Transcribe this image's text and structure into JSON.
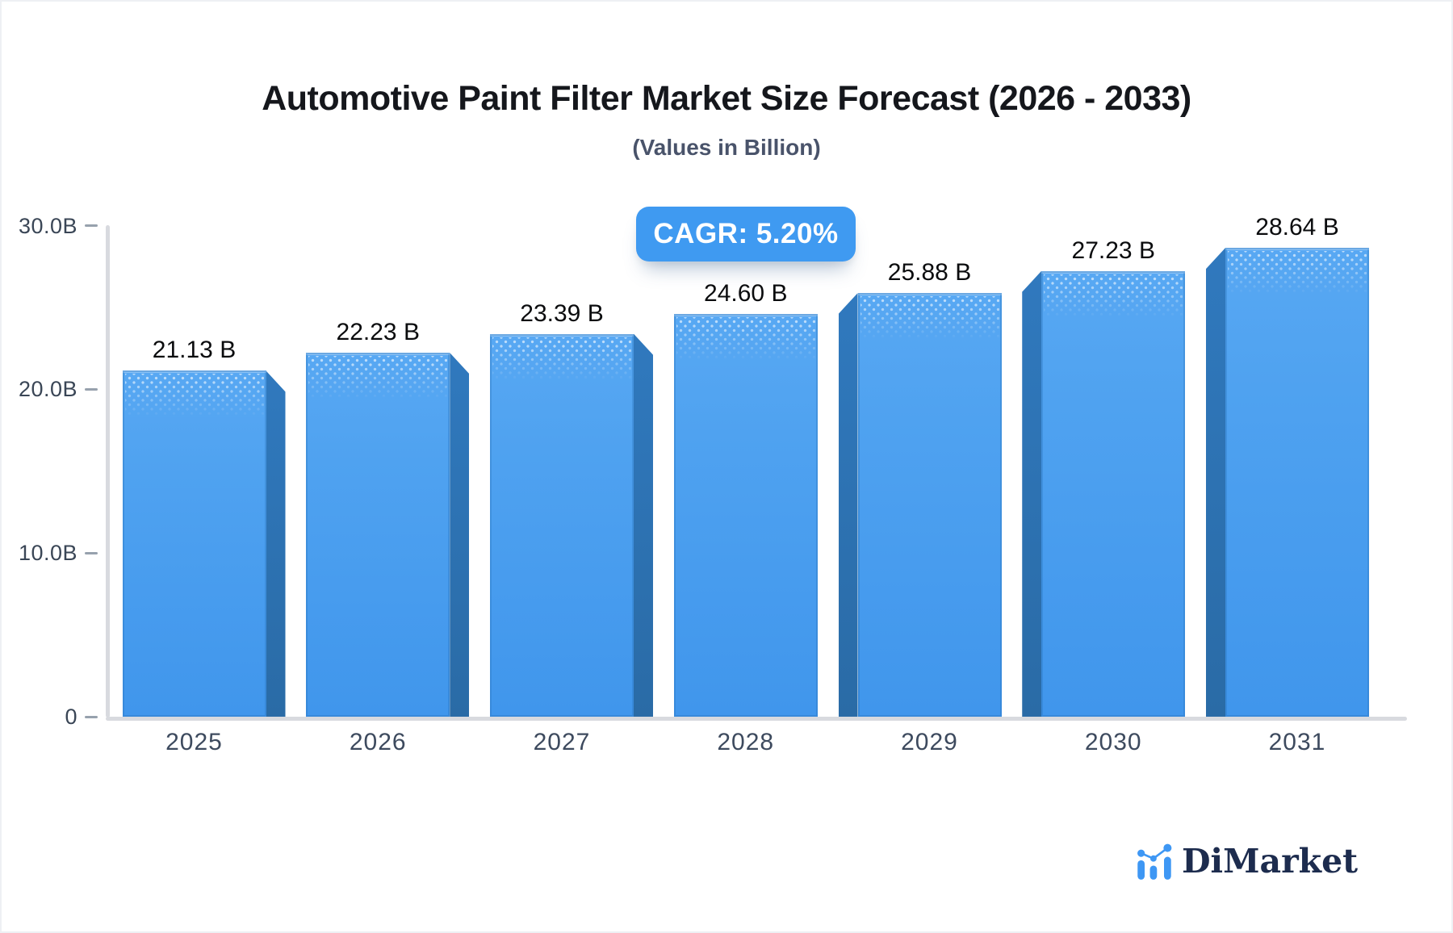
{
  "header": {
    "title": "Automotive Paint Filter Market Size Forecast (2026 - 2033)",
    "subtitle": "(Values in Billion)"
  },
  "badge": {
    "label": "CAGR: 5.20%"
  },
  "logo": {
    "text": "DiMarket",
    "icon": "mini-bar-chart-icon"
  },
  "chart_data": {
    "type": "bar",
    "title": "Automotive Paint Filter Market Size Forecast (2026 - 2033)",
    "subtitle": "(Values in Billion)",
    "categories": [
      "2025",
      "2026",
      "2027",
      "2028",
      "2029",
      "2030",
      "2031"
    ],
    "values": [
      21.13,
      22.23,
      23.39,
      24.6,
      25.88,
      27.23,
      28.64
    ],
    "value_labels": [
      "21.13 B",
      "22.23 B",
      "23.39 B",
      "24.60 B",
      "25.88 B",
      "27.23 B",
      "28.64 B"
    ],
    "cagr": "5.20%",
    "y_ticks": [
      {
        "label": "30.0B",
        "value": 30
      },
      {
        "label": "20.0B",
        "value": 20
      },
      {
        "label": "10.0B",
        "value": 10
      },
      {
        "label": "0",
        "value": 0
      }
    ],
    "ylim": [
      0,
      30
    ],
    "xlabel": "",
    "ylabel": "",
    "grid": false,
    "legend": false,
    "bar_style": "3d-beveled-perspective"
  },
  "colors": {
    "accent_blue": "#3F9AF1",
    "bar_face_top": "#58A8F3",
    "bar_face_bottom": "#4096EC",
    "bar_side": "#2C70B2",
    "axis_line": "#D8DADF",
    "tick_text": "#3A4656",
    "value_text": "#0B0C0E",
    "title_text": "#15171C",
    "subtitle_text": "#49536A",
    "logo_text": "#1D2C4E",
    "background": "#FFFFFF"
  }
}
